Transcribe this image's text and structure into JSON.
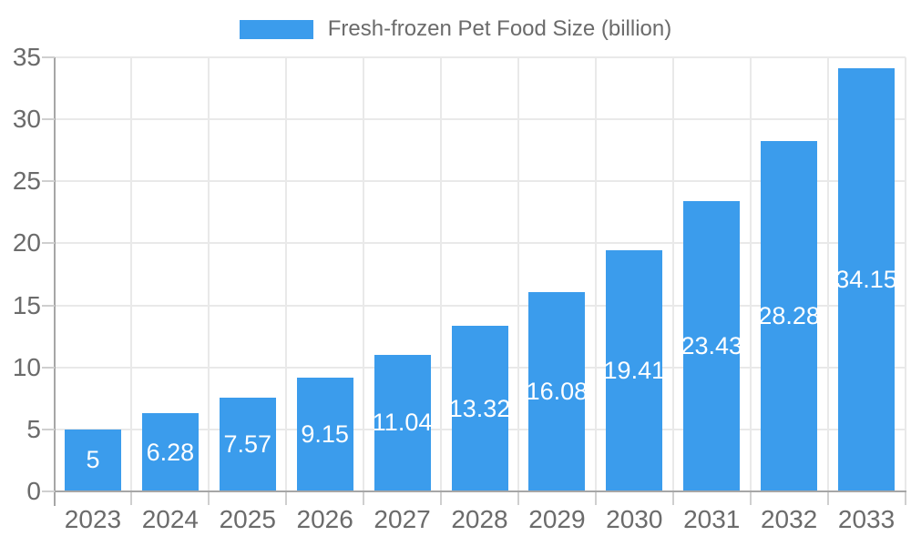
{
  "legend": {
    "label": "Fresh-frozen Pet Food Size (billion)"
  },
  "colors": {
    "bar": "#3b9cec",
    "axis_line": "#a6a6a6",
    "grid_line": "#e9e9e9",
    "tick_line": "#cfcfcf",
    "axis_label": "#6b6b6b",
    "value_label": "#ffffff",
    "background": "#ffffff"
  },
  "chart_data": {
    "type": "bar",
    "title": "Fresh-frozen Pet Food Size (billion)",
    "categories": [
      "2023",
      "2024",
      "2025",
      "2026",
      "2027",
      "2028",
      "2029",
      "2030",
      "2031",
      "2032",
      "2033"
    ],
    "values": [
      5,
      6.28,
      7.57,
      9.15,
      11.04,
      13.32,
      16.08,
      19.41,
      23.43,
      28.28,
      34.15
    ],
    "value_labels": [
      "5",
      "6.28",
      "7.57",
      "9.15",
      "11.04",
      "13.32",
      "16.08",
      "19.41",
      "23.43",
      "28.28",
      "34.15"
    ],
    "xlabel": "",
    "ylabel": "",
    "ylim": [
      0,
      35
    ],
    "ytick_step": 5,
    "yticks": [
      "0",
      "5",
      "10",
      "15",
      "20",
      "25",
      "30",
      "35"
    ],
    "grid": true,
    "legend_position": "top-center",
    "value_label_position": "inside-center"
  }
}
